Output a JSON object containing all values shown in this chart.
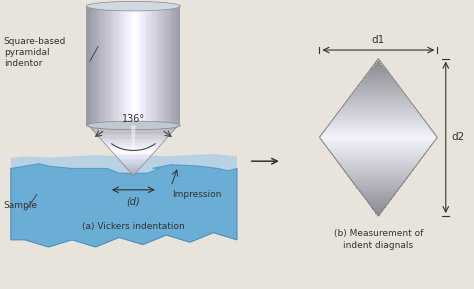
{
  "bg_color": "#e8e4dc",
  "title_a": "(a) Vickers indentation",
  "title_b": "(b) Measurement of\nindent diagnals",
  "label_indentor": "Square-based\npyramidal\nindentor",
  "label_angle": "136°",
  "label_d": "(d)",
  "label_sample": "Sample",
  "label_impression": "Impression",
  "label_d1": "d1",
  "label_d2": "d2"
}
